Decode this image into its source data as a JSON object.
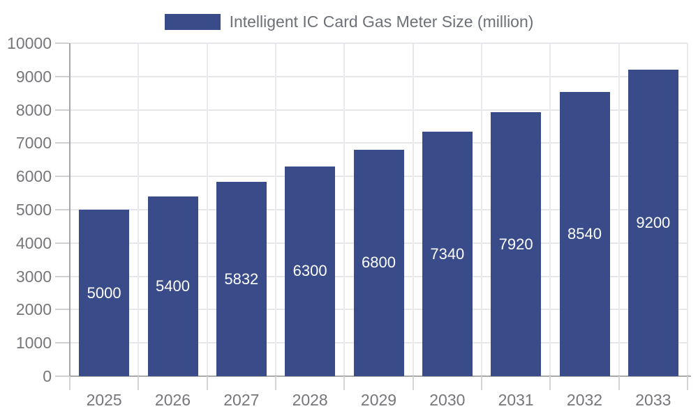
{
  "chart_data": {
    "type": "bar",
    "title": "Intelligent IC Card Gas Meter Size (million)",
    "legend_entries": [
      "Intelligent IC Card Gas Meter Size (million)"
    ],
    "legend_position": "top-center",
    "categories": [
      "2025",
      "2026",
      "2027",
      "2028",
      "2029",
      "2030",
      "2031",
      "2032",
      "2033"
    ],
    "values": [
      5000,
      5400,
      5832,
      6300,
      6800,
      7340,
      7920,
      8540,
      9200
    ],
    "xlabel": "",
    "ylabel": "",
    "ylim": [
      0,
      10000
    ],
    "ytick_step": 1000,
    "yticks": [
      0,
      1000,
      2000,
      3000,
      4000,
      5000,
      6000,
      7000,
      8000,
      9000,
      10000
    ],
    "grid": true,
    "bar_label_position": "inside-center",
    "colors": {
      "bar": "#394b89",
      "bar_value_label": "#ffffff",
      "axis_tick_label": "#76767b",
      "legend_text": "#6d7078",
      "grid_line": "#e6e6eb",
      "axis_line": "#a9a9a9",
      "background": "#ffffff"
    }
  }
}
